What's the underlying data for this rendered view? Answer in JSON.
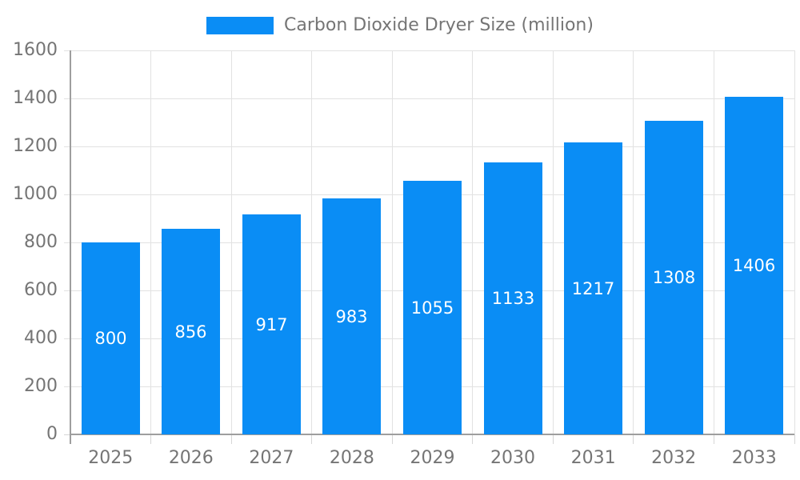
{
  "chart_data": {
    "type": "bar",
    "title": "Carbon Dioxide Dryer Size (million)",
    "categories": [
      "2025",
      "2026",
      "2027",
      "2028",
      "2029",
      "2030",
      "2031",
      "2032",
      "2033"
    ],
    "series": [
      {
        "name": "Carbon Dioxide Dryer Size (million)",
        "values": [
          800,
          856,
          917,
          983,
          1055,
          1133,
          1217,
          1308,
          1406
        ]
      }
    ],
    "xlabel": "",
    "ylabel": "",
    "ylim": [
      0,
      1600
    ],
    "ytick_step": 200,
    "yticks": [
      0,
      200,
      400,
      600,
      800,
      1000,
      1200,
      1400,
      1600
    ],
    "grid": true,
    "legend_position": "top-center",
    "value_labels": "inside-center"
  },
  "legend": {
    "label": "Carbon Dioxide Dryer Size (million)"
  },
  "colors": {
    "bar": "#0A8DF5",
    "axis_line": "#9E9E9E",
    "gridline": "#E2E2E2",
    "tick": "#D6D6D6",
    "axis_text": "#757575",
    "legend_text": "#757575",
    "value_label_text": "#FFFFFF",
    "background": "#FFFFFF"
  }
}
